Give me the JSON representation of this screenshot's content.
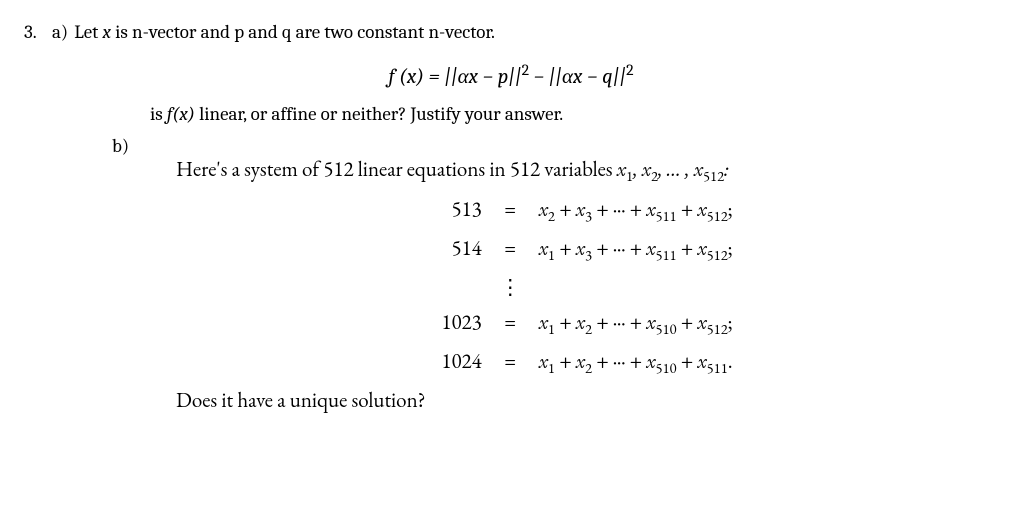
{
  "q_number": "3.",
  "part_a": {
    "label": "a)",
    "intro_before_x": "Let ",
    "x": "x",
    "intro_mid1": "  is  n-vector and p and q are two constant n-vector.",
    "equation_html": "f (x) =   ||αx − p||<span class='sup'>2</span>  −   ||αx − q||<span class='sup'>2</span>",
    "line2_prefix": "is  ",
    "fx": "f(x)",
    "line2_rest": " linear, or affine or neither? Justify your answer."
  },
  "part_b": {
    "label": "b)",
    "intro_before": "Here's a system of 512 linear equations in 512 variables ",
    "vars": "x<span class='sub'>1</span>, x<span class='sub'>2</span>, … , x<span class='sub'>512</span>:",
    "rows": [
      {
        "lhs": "513",
        "rhs": "x<span class='sub'>2</span> <span class='up'>+</span> x<span class='sub'>3</span> <span class='up'>+ ··· +</span> x<span class='sub'>511</span> <span class='up'>+</span> x<span class='sub'>512</span><span class='up'>;</span>"
      },
      {
        "lhs": "514",
        "rhs": "x<span class='sub'>1</span> <span class='up'>+</span> x<span class='sub'>3</span> <span class='up'>+ ··· +</span> x<span class='sub'>511</span> <span class='up'>+</span> x<span class='sub'>512</span><span class='up'>;</span>"
      },
      {
        "lhs": "1023",
        "rhs": "x<span class='sub'>1</span> <span class='up'>+</span> x<span class='sub'>2</span> <span class='up'>+ ··· +</span> x<span class='sub'>510</span> <span class='up'>+</span> x<span class='sub'>512</span><span class='up'>;</span>"
      },
      {
        "lhs": "1024",
        "rhs": "x<span class='sub'>1</span> <span class='up'>+</span> x<span class='sub'>2</span> <span class='up'>+ ··· +</span> x<span class='sub'>510</span> <span class='up'>+</span> x<span class='sub'>511</span><span class='up'>.</span>"
      }
    ],
    "final": "Does it have a unique solution?"
  },
  "eq_sign": "="
}
